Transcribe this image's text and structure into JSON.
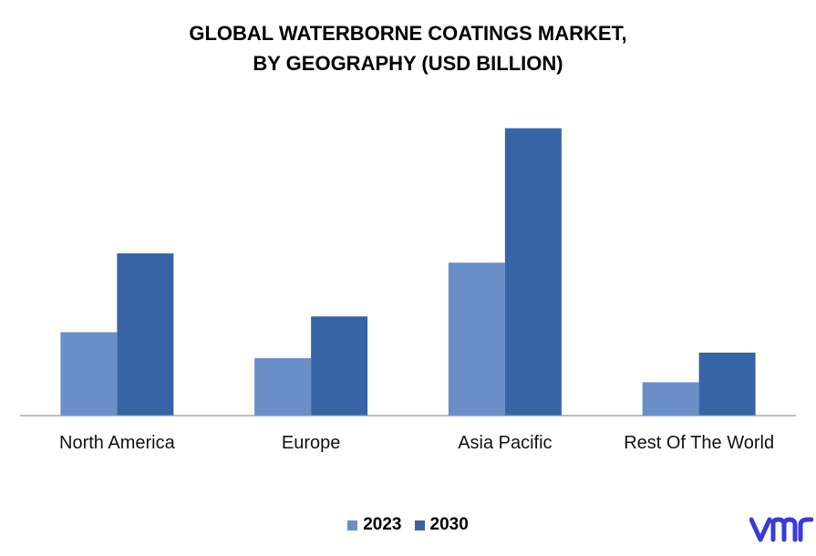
{
  "title_line1": "GLOBAL WATERBORNE COATINGS MARKET,",
  "title_line2": "BY GEOGRAPHY (USD BILLION)",
  "colors": {
    "s2023": "#6a8fc8",
    "s2030": "#3764a5",
    "axis": "#999999",
    "logo": "#3a3ad8"
  },
  "logo_icon": "vmr-logo-icon",
  "chart_data": {
    "type": "bar",
    "title": "GLOBAL WATERBORNE COATINGS MARKET, BY GEOGRAPHY (USD BILLION)",
    "categories": [
      "North America",
      "Europe",
      "Asia Pacific",
      "Rest Of The World"
    ],
    "series": [
      {
        "name": "2023",
        "values": [
          9.0,
          6.2,
          16.5,
          3.6
        ]
      },
      {
        "name": "2030",
        "values": [
          17.5,
          10.7,
          31.0,
          6.8
        ]
      }
    ],
    "ylim": [
      0,
      35
    ],
    "grid": false,
    "legend": "bottom"
  }
}
